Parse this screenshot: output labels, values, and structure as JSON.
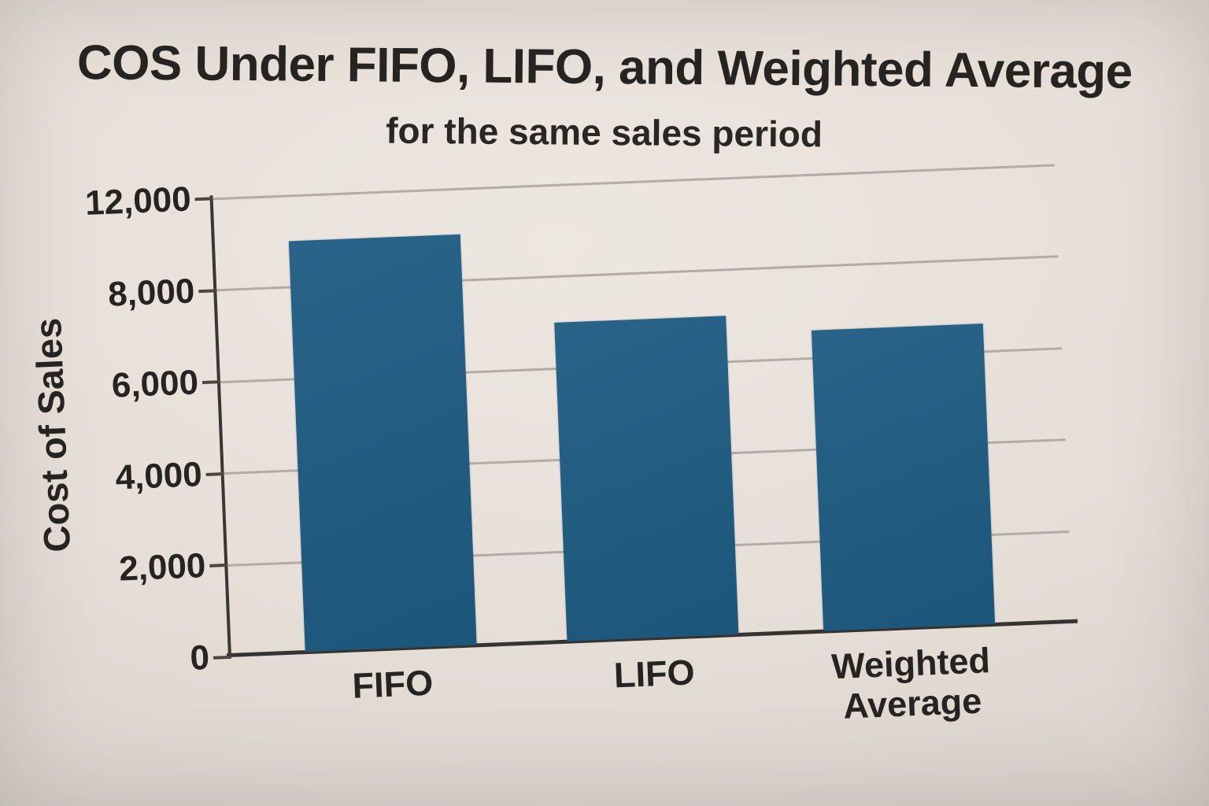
{
  "chart_data": {
    "type": "bar",
    "title": "COS Under FIFO, LIFO, and Weighted Average",
    "subtitle": "for the same sales period",
    "ylabel": "Cost of Sales",
    "xlabel": "",
    "categories": [
      "FIFO",
      "LIFO",
      "Weighted Average"
    ],
    "values": [
      10000,
      7000,
      6600
    ],
    "y_ticks": [
      0,
      2000,
      4000,
      6000,
      8000,
      12000
    ],
    "y_tick_labels": [
      "0",
      "2,000",
      "4,000",
      "6,000",
      "8,000",
      "12,000"
    ],
    "ylim_as_labeled": [
      0,
      12000
    ],
    "grid": true,
    "legend": false,
    "bar_color": "#1e5b82",
    "axis_color": "#3a3631",
    "grid_color": "#a9a29b",
    "background_color": "#e6dfd8",
    "text_color": "#262320"
  }
}
